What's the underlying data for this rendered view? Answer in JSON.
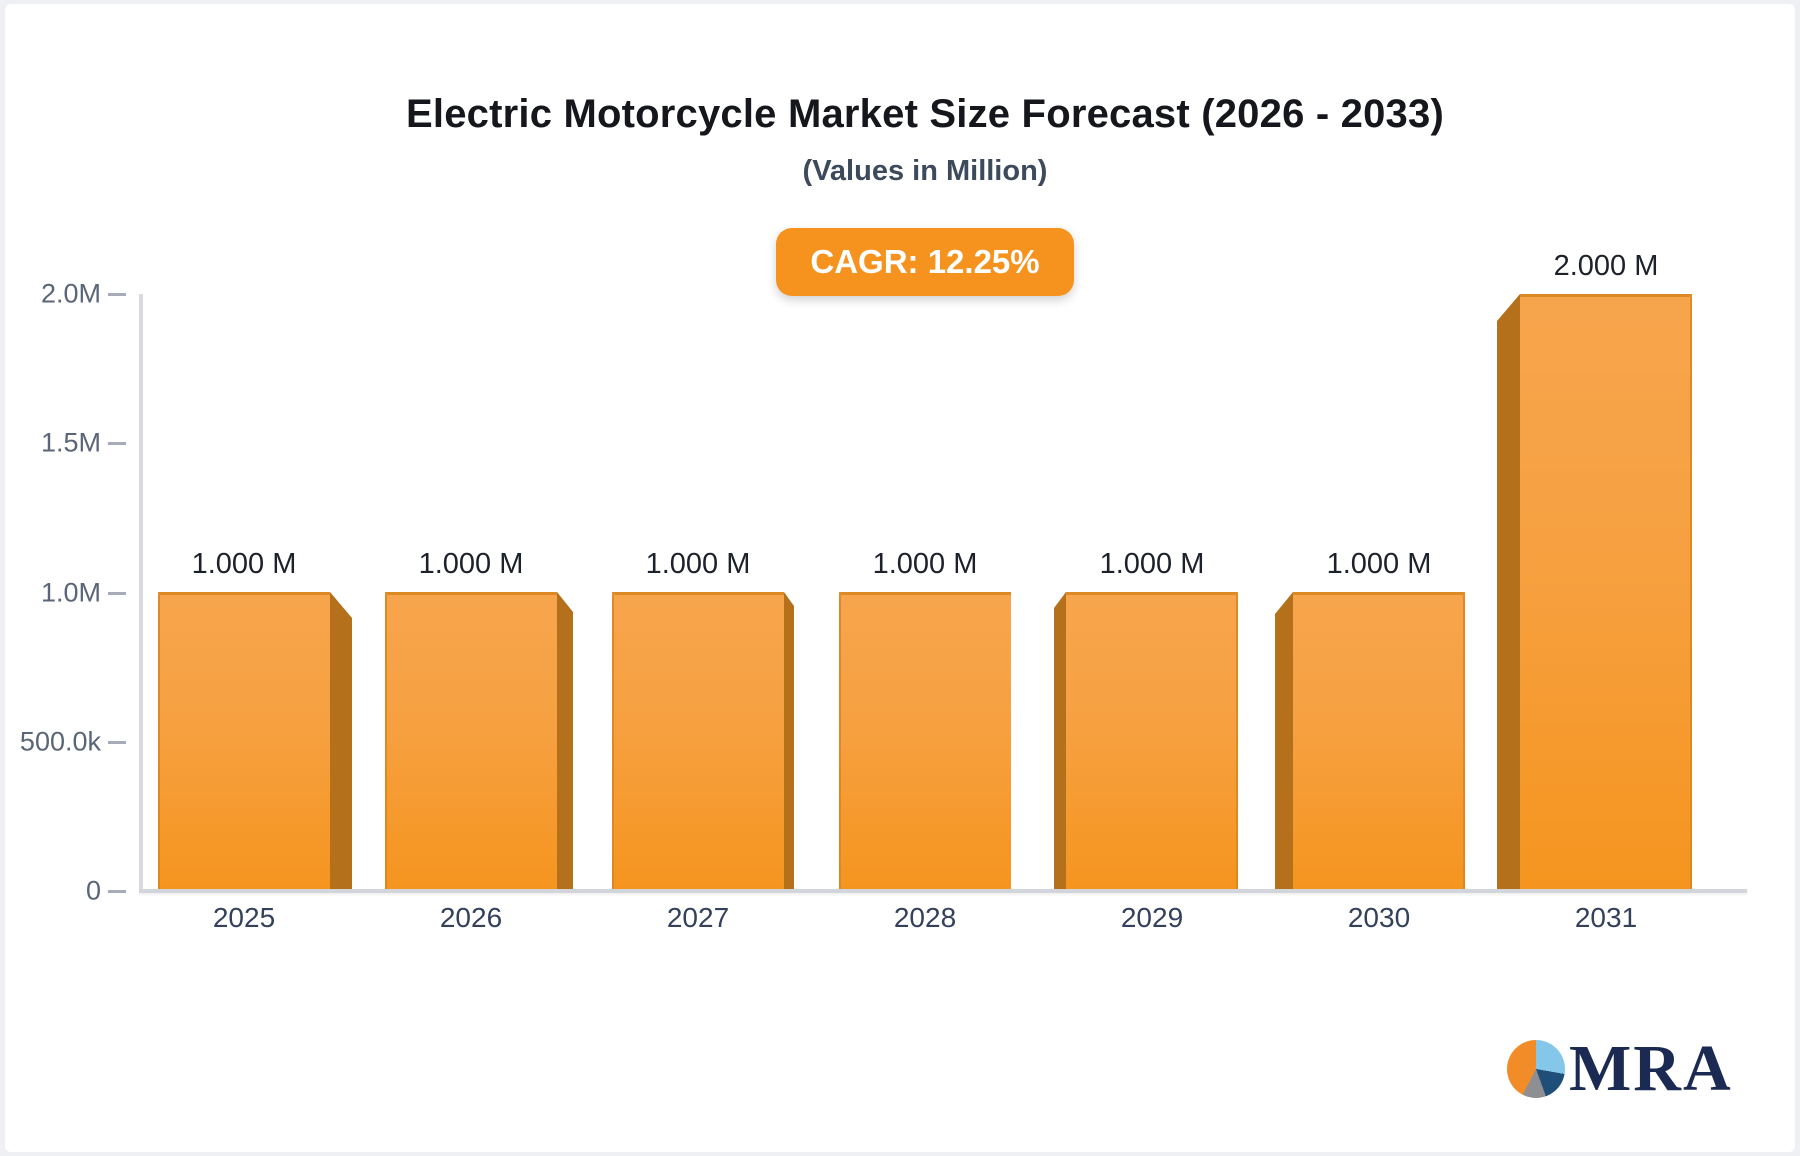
{
  "page": {
    "background_color": "#ffffff",
    "frame_color": "#eef0f4"
  },
  "chart_data": {
    "type": "bar",
    "title": "Electric Motorcycle Market Size Forecast (2026 - 2033)",
    "subtitle": "(Values in Million)",
    "cagr_label": "CAGR: 12.25%",
    "unit": "Million",
    "categories": [
      "2025",
      "2026",
      "2027",
      "2028",
      "2029",
      "2030",
      "2031"
    ],
    "values": [
      1.0,
      1.0,
      1.0,
      1.0,
      1.0,
      1.0,
      2.0
    ],
    "value_labels": [
      "1.000 M",
      "1.000 M",
      "1.000 M",
      "1.000 M",
      "1.000 M",
      "1.000 M",
      "2.000 M"
    ],
    "ylabel": "",
    "xlabel": "",
    "ylim": [
      0,
      2.0
    ],
    "y_ticks": [
      {
        "label": "2.0M",
        "value": 2.0
      },
      {
        "label": "1.5M",
        "value": 1.5
      },
      {
        "label": "1.0M",
        "value": 1.0
      },
      {
        "label": "500.0k",
        "value": 0.5
      },
      {
        "label": "0",
        "value": 0
      }
    ],
    "grid": false,
    "legend": false,
    "style": "3d-perspective-bars",
    "colors": {
      "bar_face_top": "#F7A54D",
      "bar_face_bottom": "#F5951F",
      "bar_top_edge": "#DD8A26",
      "bar_side": "#B5701B",
      "badge_background": "#F6921E",
      "badge_text": "#FFFFFF",
      "axis_line": "#D8DADF",
      "tick_label": "#5A6578",
      "x_label": "#34415C",
      "value_label": "#1D212B",
      "title": "#15171C",
      "subtitle": "#3D4A5C"
    }
  },
  "branding": {
    "logo_text": "MRA",
    "logo_pie_colors": [
      "#F28C28",
      "#85C7E8",
      "#1F4E79",
      "#8F8F93"
    ]
  }
}
